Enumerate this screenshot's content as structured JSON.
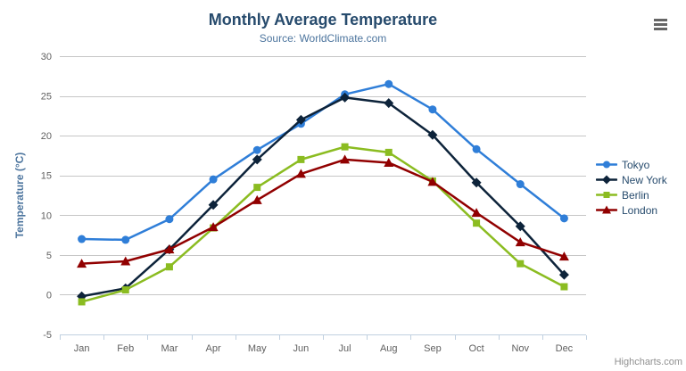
{
  "chart": {
    "title": "Monthly Average Temperature",
    "subtitle": "Source: WorldClimate.com",
    "credits": "Highcharts.com",
    "export_menu_icon": "hamburger-icon",
    "colors": {
      "title": "#274b6d",
      "subtitle": "#4d759e",
      "axis_title": "#4d759e",
      "tick_label": "#606060",
      "gridline": "#c6c6c6",
      "axis_line": "#c0d0e0",
      "legend_text": "#274b6d",
      "credits": "#909090",
      "burger": "#666666",
      "background": "#ffffff"
    }
  },
  "chart_data": {
    "type": "line",
    "title": "Monthly Average Temperature",
    "subtitle": "Source: WorldClimate.com",
    "xlabel": "",
    "ylabel": "Temperature (°C)",
    "ylim": [
      -5,
      30
    ],
    "ytick_step": 5,
    "yticks": [
      -5,
      0,
      5,
      10,
      15,
      20,
      25,
      30
    ],
    "grid": "horizontal-only",
    "legend_position": "right",
    "categories": [
      "Jan",
      "Feb",
      "Mar",
      "Apr",
      "May",
      "Jun",
      "Jul",
      "Aug",
      "Sep",
      "Oct",
      "Nov",
      "Dec"
    ],
    "series": [
      {
        "name": "Tokyo",
        "color": "#2f7ed8",
        "marker": "circle",
        "values": [
          7.0,
          6.9,
          9.5,
          14.5,
          18.2,
          21.5,
          25.2,
          26.5,
          23.3,
          18.3,
          13.9,
          9.6
        ]
      },
      {
        "name": "New York",
        "color": "#0d233a",
        "marker": "diamond",
        "values": [
          -0.2,
          0.8,
          5.7,
          11.3,
          17.0,
          22.0,
          24.8,
          24.1,
          20.1,
          14.1,
          8.6,
          2.5
        ]
      },
      {
        "name": "Berlin",
        "color": "#8bbc21",
        "marker": "square",
        "values": [
          -0.9,
          0.6,
          3.5,
          8.4,
          13.5,
          17.0,
          18.6,
          17.9,
          14.3,
          9.0,
          3.9,
          1.0
        ]
      },
      {
        "name": "London",
        "color": "#910000",
        "marker": "triangle",
        "values": [
          3.9,
          4.2,
          5.7,
          8.5,
          11.9,
          15.2,
          17.0,
          16.6,
          14.2,
          10.3,
          6.6,
          4.8
        ]
      }
    ]
  }
}
